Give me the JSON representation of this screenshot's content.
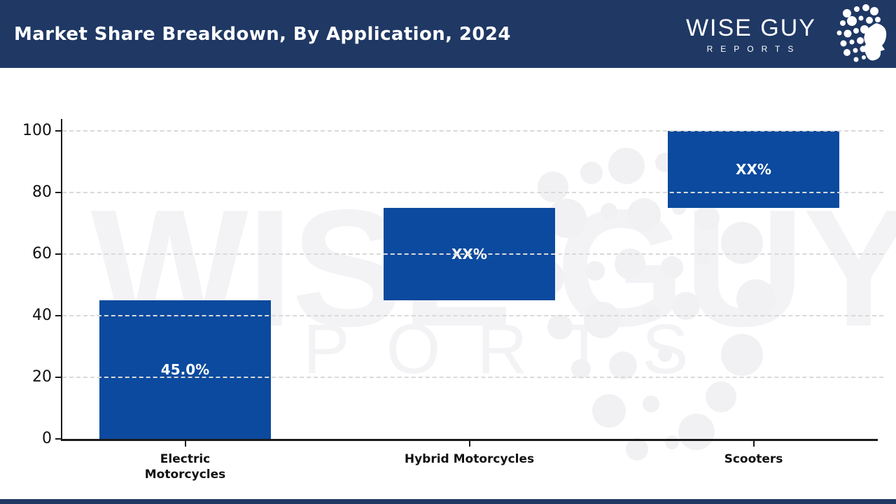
{
  "header": {
    "title": "Market Share Breakdown, By Application, 2024",
    "logo": {
      "line1": "WISE GUY",
      "line2": "REPORTS"
    }
  },
  "watermark": {
    "line1": "WISE GUY",
    "line2": "REPORTS"
  },
  "colors": {
    "header_navy": "#1f3864",
    "bar_blue": "#0b4a9e",
    "gridline_gray": "#d9d9d9",
    "watermark_gray": "#f3f3f6",
    "axis_black": "#1a1a1a"
  },
  "chart_data": {
    "type": "bar",
    "variant": "waterfall",
    "title": "Market Share Breakdown, By Application, 2024",
    "categories": [
      "Electric\nMotorcycles",
      "Hybrid Motorcycles",
      "Scooters"
    ],
    "segments": [
      {
        "category": "Electric Motorcycles",
        "start": 0,
        "end": 45,
        "label": "45.0%"
      },
      {
        "category": "Hybrid Motorcycles",
        "start": 45,
        "end": 75,
        "label": "XX%"
      },
      {
        "category": "Scooters",
        "start": 75,
        "end": 100,
        "label": "XX%"
      }
    ],
    "yticks": [
      0,
      20,
      40,
      60,
      80,
      100
    ],
    "ylim": [
      0,
      100
    ],
    "xlabel": "",
    "ylabel": "",
    "grid": "horizontal-dashed",
    "legend": "none",
    "bar_color": "#0b4a9e",
    "bar_label_color": "#ffffff"
  }
}
